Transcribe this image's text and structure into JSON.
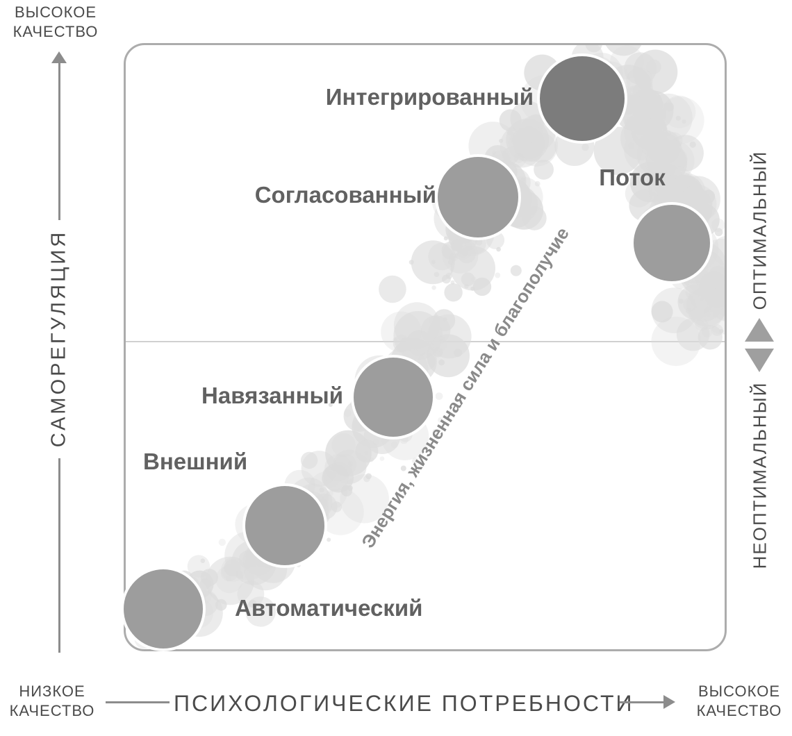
{
  "y_axis": {
    "label": "САМОРЕГУЛЯЦИЯ",
    "high_caption_lines": [
      "ВЫСОКОЕ",
      "КАЧЕСТВО"
    ]
  },
  "x_axis": {
    "label": "ПСИХОЛОГИЧЕСКИЕ ПОТРЕБНОСТИ",
    "low_caption_lines": [
      "НИЗКОЕ",
      "КАЧЕСТВО"
    ],
    "high_caption_lines": [
      "ВЫСОКОЕ",
      "КАЧЕСТВО"
    ]
  },
  "right_axis": {
    "optimal_label": "ОПТИМАЛЬНЫЙ",
    "suboptimal_label": "НЕОПТИМАЛЬНЫЙ"
  },
  "curve_annotation": "Энергия, жизненная сила и благополучие",
  "nodes": [
    {
      "id": "automatic",
      "label": "Автоматический"
    },
    {
      "id": "external",
      "label": "Внешний"
    },
    {
      "id": "introjected",
      "label": "Навязанный"
    },
    {
      "id": "concordant",
      "label": "Согласованный"
    },
    {
      "id": "integrated",
      "label": "Интегрированный"
    },
    {
      "id": "flow",
      "label": "Поток"
    }
  ],
  "colors": {
    "node-fill": "#9d9d9d",
    "node-fill-dark": "#7c7c7c",
    "bubble-fill": "#dcdcdc",
    "text-main": "#4a4a4a",
    "label-text": "#616161",
    "axis-line": "#8c8c8c",
    "box-border": "#acacac",
    "divider": "#d0d0d0",
    "diamond": "#9f9f9f",
    "annotation-text": "#8a8a8a"
  }
}
